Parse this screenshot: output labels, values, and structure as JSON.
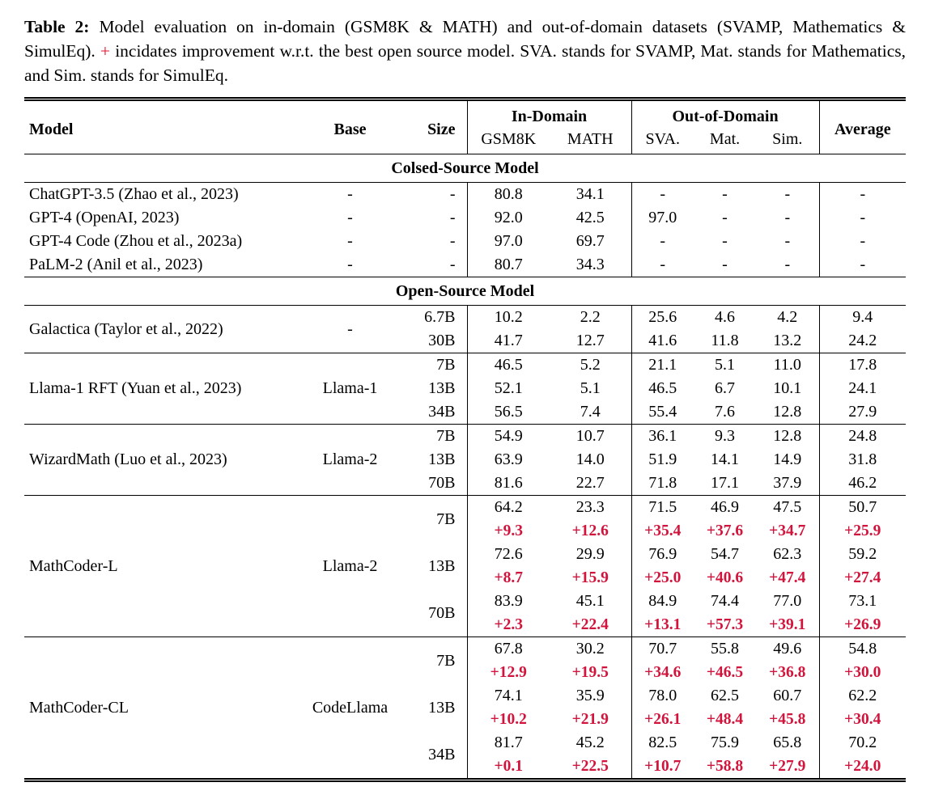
{
  "caption": {
    "label": "Table 2:",
    "text_before_plus": "Model evaluation on in-domain (GSM8K & MATH) and out-of-domain datasets (SVAMP, Mathematics & SimulEq).",
    "plus": "+",
    "text_after_plus": "incidates improvement w.r.t. the best open source model. SVA. stands for SVAMP, Mat. stands for Mathematics, and Sim. stands for SimulEq."
  },
  "colors": {
    "delta_red": "#d2143c",
    "plus_red": "#e8112d",
    "rule_black": "#000000"
  },
  "table": {
    "header": {
      "model": "Model",
      "base": "Base",
      "size": "Size",
      "in_domain": "In-Domain",
      "out_of_domain": "Out-of-Domain",
      "average": "Average",
      "sub": [
        "GSM8K",
        "MATH",
        "SVA.",
        "Mat.",
        "Sim."
      ]
    },
    "sections": [
      {
        "title": "Colsed-Source Model",
        "rules_between_groups": false,
        "groups": [
          {
            "model": "ChatGPT-3.5 (Zhao et al., 2023)",
            "base": "-",
            "rows": [
              {
                "size": "-",
                "values": [
                  "80.8",
                  "34.1",
                  "-",
                  "-",
                  "-",
                  "-"
                ]
              }
            ]
          },
          {
            "model": "GPT-4 (OpenAI, 2023)",
            "base": "-",
            "rows": [
              {
                "size": "-",
                "values": [
                  "92.0",
                  "42.5",
                  "97.0",
                  "-",
                  "-",
                  "-"
                ]
              }
            ]
          },
          {
            "model": "GPT-4 Code (Zhou et al., 2023a)",
            "base": "-",
            "rows": [
              {
                "size": "-",
                "values": [
                  "97.0",
                  "69.7",
                  "-",
                  "-",
                  "-",
                  "-"
                ]
              }
            ]
          },
          {
            "model": "PaLM-2 (Anil et al., 2023)",
            "base": "-",
            "rows": [
              {
                "size": "-",
                "values": [
                  "80.7",
                  "34.3",
                  "-",
                  "-",
                  "-",
                  "-"
                ]
              }
            ]
          }
        ]
      },
      {
        "title": "Open-Source Model",
        "rules_between_groups": true,
        "groups": [
          {
            "model": "Galactica (Taylor et al., 2022)",
            "base": "-",
            "rows": [
              {
                "size": "6.7B",
                "values": [
                  "10.2",
                  "2.2",
                  "25.6",
                  "4.6",
                  "4.2",
                  "9.4"
                ]
              },
              {
                "size": "30B",
                "values": [
                  "41.7",
                  "12.7",
                  "41.6",
                  "11.8",
                  "13.2",
                  "24.2"
                ]
              }
            ]
          },
          {
            "model": "Llama-1 RFT (Yuan et al., 2023)",
            "base": "Llama-1",
            "rows": [
              {
                "size": "7B",
                "values": [
                  "46.5",
                  "5.2",
                  "21.1",
                  "5.1",
                  "11.0",
                  "17.8"
                ]
              },
              {
                "size": "13B",
                "values": [
                  "52.1",
                  "5.1",
                  "46.5",
                  "6.7",
                  "10.1",
                  "24.1"
                ]
              },
              {
                "size": "34B",
                "values": [
                  "56.5",
                  "7.4",
                  "55.4",
                  "7.6",
                  "12.8",
                  "27.9"
                ]
              }
            ]
          },
          {
            "model": "WizardMath (Luo et al., 2023)",
            "base": "Llama-2",
            "rows": [
              {
                "size": "7B",
                "values": [
                  "54.9",
                  "10.7",
                  "36.1",
                  "9.3",
                  "12.8",
                  "24.8"
                ]
              },
              {
                "size": "13B",
                "values": [
                  "63.9",
                  "14.0",
                  "51.9",
                  "14.1",
                  "14.9",
                  "31.8"
                ]
              },
              {
                "size": "70B",
                "values": [
                  "81.6",
                  "22.7",
                  "71.8",
                  "17.1",
                  "37.9",
                  "46.2"
                ]
              }
            ]
          },
          {
            "model": "MathCoder-L",
            "base": "Llama-2",
            "rows": [
              {
                "size": "7B",
                "values": [
                  "64.2",
                  "23.3",
                  "71.5",
                  "46.9",
                  "47.5",
                  "50.7"
                ],
                "deltas": [
                  "+9.3",
                  "+12.6",
                  "+35.4",
                  "+37.6",
                  "+34.7",
                  "+25.9"
                ]
              },
              {
                "size": "13B",
                "values": [
                  "72.6",
                  "29.9",
                  "76.9",
                  "54.7",
                  "62.3",
                  "59.2"
                ],
                "deltas": [
                  "+8.7",
                  "+15.9",
                  "+25.0",
                  "+40.6",
                  "+47.4",
                  "+27.4"
                ]
              },
              {
                "size": "70B",
                "values": [
                  "83.9",
                  "45.1",
                  "84.9",
                  "74.4",
                  "77.0",
                  "73.1"
                ],
                "deltas": [
                  "+2.3",
                  "+22.4",
                  "+13.1",
                  "+57.3",
                  "+39.1",
                  "+26.9"
                ]
              }
            ]
          },
          {
            "model": "MathCoder-CL",
            "base": "CodeLlama",
            "rows": [
              {
                "size": "7B",
                "values": [
                  "67.8",
                  "30.2",
                  "70.7",
                  "55.8",
                  "49.6",
                  "54.8"
                ],
                "deltas": [
                  "+12.9",
                  "+19.5",
                  "+34.6",
                  "+46.5",
                  "+36.8",
                  "+30.0"
                ]
              },
              {
                "size": "13B",
                "values": [
                  "74.1",
                  "35.9",
                  "78.0",
                  "62.5",
                  "60.7",
                  "62.2"
                ],
                "deltas": [
                  "+10.2",
                  "+21.9",
                  "+26.1",
                  "+48.4",
                  "+45.8",
                  "+30.4"
                ]
              },
              {
                "size": "34B",
                "values": [
                  "81.7",
                  "45.2",
                  "82.5",
                  "75.9",
                  "65.8",
                  "70.2"
                ],
                "deltas": [
                  "+0.1",
                  "+22.5",
                  "+10.7",
                  "+58.8",
                  "+27.9",
                  "+24.0"
                ]
              }
            ]
          }
        ]
      }
    ]
  }
}
